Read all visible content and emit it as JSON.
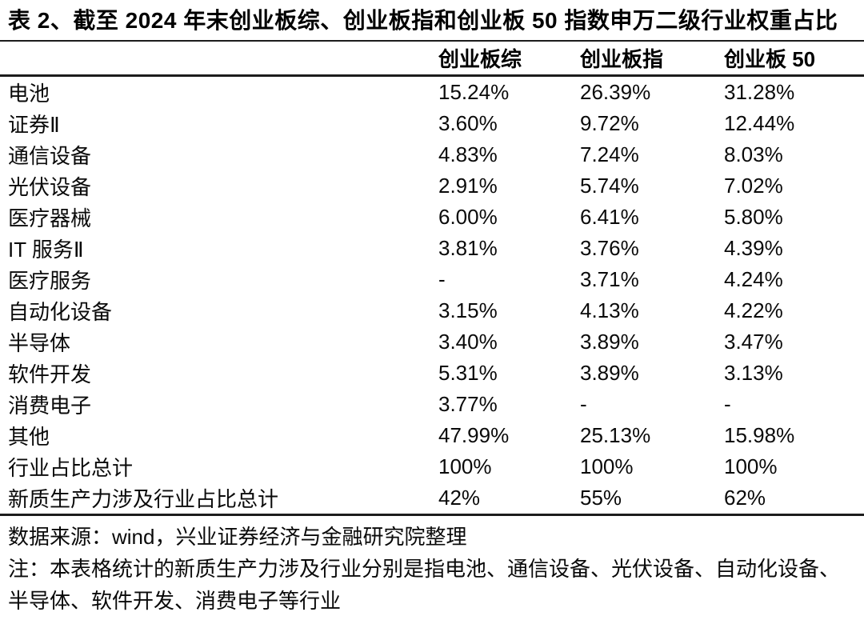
{
  "title": "表 2、截至 2024 年末创业板综、创业板指和创业板 50 指数申万二级行业权重占比",
  "table": {
    "columns": [
      "",
      "创业板综",
      "创业板指",
      "创业板 50"
    ],
    "rows": [
      {
        "label": "电池",
        "values": [
          "15.24%",
          "26.39%",
          "31.28%"
        ]
      },
      {
        "label": "证券Ⅱ",
        "values": [
          "3.60%",
          "9.72%",
          "12.44%"
        ]
      },
      {
        "label": "通信设备",
        "values": [
          "4.83%",
          "7.24%",
          "8.03%"
        ]
      },
      {
        "label": "光伏设备",
        "values": [
          "2.91%",
          "5.74%",
          "7.02%"
        ]
      },
      {
        "label": "医疗器械",
        "values": [
          "6.00%",
          "6.41%",
          "5.80%"
        ]
      },
      {
        "label": "IT 服务Ⅱ",
        "values": [
          "3.81%",
          "3.76%",
          "4.39%"
        ]
      },
      {
        "label": "医疗服务",
        "values": [
          "-",
          "3.71%",
          "4.24%"
        ]
      },
      {
        "label": "自动化设备",
        "values": [
          "3.15%",
          "4.13%",
          "4.22%"
        ]
      },
      {
        "label": "半导体",
        "values": [
          "3.40%",
          "3.89%",
          "3.47%"
        ]
      },
      {
        "label": "软件开发",
        "values": [
          "5.31%",
          "3.89%",
          "3.13%"
        ]
      },
      {
        "label": "消费电子",
        "values": [
          "3.77%",
          "-",
          "-"
        ]
      },
      {
        "label": "其他",
        "values": [
          "47.99%",
          "25.13%",
          "15.98%"
        ]
      },
      {
        "label": "行业占比总计",
        "values": [
          "100%",
          "100%",
          "100%"
        ]
      },
      {
        "label": "新质生产力涉及行业占比总计",
        "values": [
          "42%",
          "55%",
          "62%"
        ]
      }
    ]
  },
  "footer": {
    "source": "数据来源：wind，兴业证券经济与金融研究院整理",
    "note": "注：本表格统计的新质生产力涉及行业分别是指电池、通信设备、光伏设备、自动化设备、半导体、软件开发、消费电子等行业"
  },
  "colors": {
    "text": "#000000",
    "rule": "#1c1c1c",
    "background": "#ffffff"
  }
}
